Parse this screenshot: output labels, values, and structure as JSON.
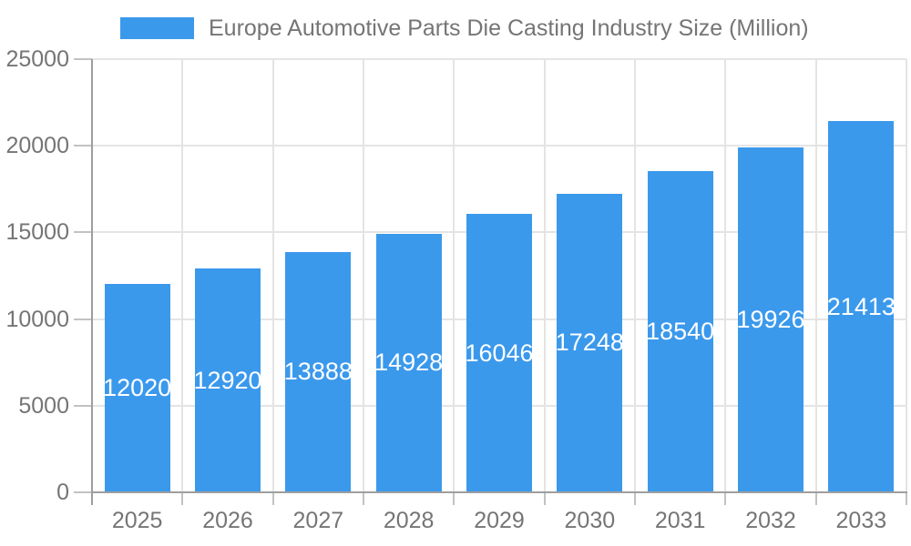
{
  "chart_data": {
    "type": "bar",
    "legend": {
      "position": "top",
      "label": "Europe Automotive Parts Die Casting Industry Size (Million)"
    },
    "categories": [
      "2025",
      "2026",
      "2027",
      "2028",
      "2029",
      "2030",
      "2031",
      "2032",
      "2033"
    ],
    "values": [
      12020,
      12920,
      13888,
      14928,
      16046,
      17248,
      18540,
      19926,
      21413
    ],
    "xlabel": "",
    "ylabel": "",
    "ylim": [
      0,
      25000
    ],
    "yticks": [
      0,
      5000,
      10000,
      15000,
      20000,
      25000
    ],
    "grid": true,
    "bar_value_labels_visible": true,
    "colors": {
      "bar": "#3B99EC",
      "bar_label_text": "#FFFFFF",
      "axis_text": "#757575",
      "legend_text": "#757575",
      "gridline": "#E4E4E4",
      "axis_line": "#9E9E9E",
      "tick_mark": "#C2C2C2",
      "background": "#FFFFFF"
    }
  }
}
